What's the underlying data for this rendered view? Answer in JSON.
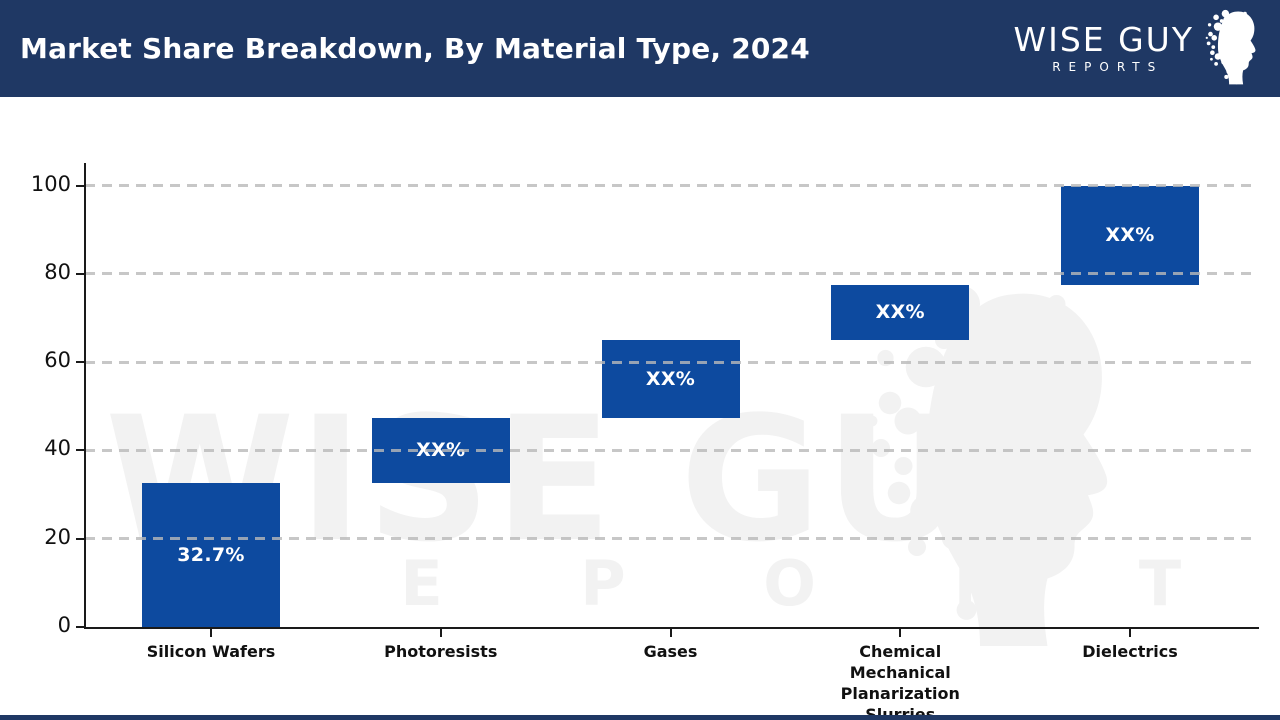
{
  "header": {
    "title": "Market Share Breakdown, By Material Type, 2024",
    "logo": {
      "line1": "WISE GUY",
      "line2": "REPORTS"
    }
  },
  "watermark": {
    "line1": "WISE GUY",
    "line2": "R E P O R T S"
  },
  "colors": {
    "header_bg": "#1f3864",
    "footer_bg": "#1f3864",
    "bar_blue": "#0d4a9f",
    "bar_label": "#ffffff",
    "watermark_gray": "#f2f2f2"
  },
  "chart_data": {
    "type": "bar",
    "subtype": "waterfall",
    "title": "Market Share Breakdown, By Material Type, 2024",
    "xlabel": "",
    "ylabel": "",
    "ylim": [
      0,
      105
    ],
    "grid": true,
    "legend": null,
    "categories": [
      "Silicon Wafers",
      "Photoresists",
      "Gases",
      "Chemical Mechanical Planarization Slurries",
      "Dielectrics"
    ],
    "yticks": [
      0,
      20,
      40,
      60,
      80,
      100
    ],
    "bar_color": "#0d4a9f",
    "segments": [
      {
        "start": 0,
        "end": 32.7,
        "value": 32.7,
        "label": "32.7%"
      },
      {
        "start": 32.7,
        "end": 47.3,
        "value": 14.6,
        "label": "XX%"
      },
      {
        "start": 47.3,
        "end": 65.0,
        "value": 17.7,
        "label": "XX%"
      },
      {
        "start": 65.0,
        "end": 77.5,
        "value": 12.5,
        "label": "XX%"
      },
      {
        "start": 77.5,
        "end": 100.0,
        "value": 22.5,
        "label": "XX%"
      }
    ]
  }
}
